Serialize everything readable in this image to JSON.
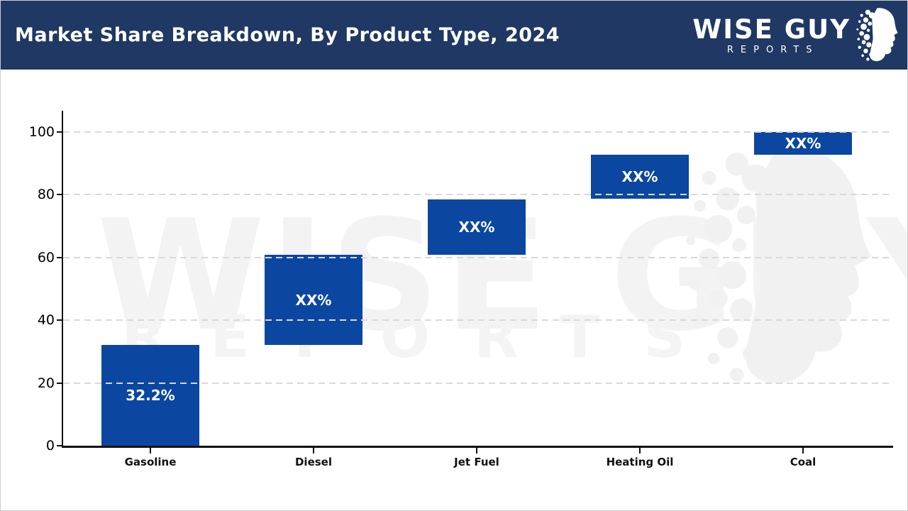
{
  "header": {
    "title": "Market Share Breakdown, By Product Type, 2024",
    "logo": {
      "line1": "WISE GUY",
      "line2": "REPORTS"
    }
  },
  "watermark": {
    "line1": "WISE GUY",
    "line2": "REPORTS"
  },
  "chart_data": {
    "type": "bar",
    "subtype": "waterfall",
    "title": "Market Share Breakdown, By Product Type, 2024",
    "categories": [
      "Gasoline",
      "Diesel",
      "Jet Fuel",
      "Heating Oil",
      "Coal"
    ],
    "segments": [
      {
        "category": "Gasoline",
        "start": 0,
        "end": 32.2,
        "label": "32.2%"
      },
      {
        "category": "Diesel",
        "start": 32.2,
        "end": 60.7,
        "label": "XX%"
      },
      {
        "category": "Jet Fuel",
        "start": 60.7,
        "end": 78.4,
        "label": "XX%"
      },
      {
        "category": "Heating Oil",
        "start": 78.6,
        "end": 92.7,
        "label": "XX%"
      },
      {
        "category": "Coal",
        "start": 92.7,
        "end": 100,
        "label": "XX%"
      }
    ],
    "xlabel": "",
    "ylabel": "",
    "ylim": [
      0,
      106.7
    ],
    "yticks": [
      0,
      20,
      40,
      60,
      80,
      100
    ],
    "grid": {
      "horizontal": true,
      "style": "dashed",
      "color": "#d9d9d9",
      "above_bars": true
    },
    "legend": null,
    "colors": {
      "bar": "#0b47a1",
      "bar_label": "#ffffff",
      "axis": "#111111",
      "header_bg": "#1f3864",
      "watermark": "#f3f3f3"
    }
  }
}
